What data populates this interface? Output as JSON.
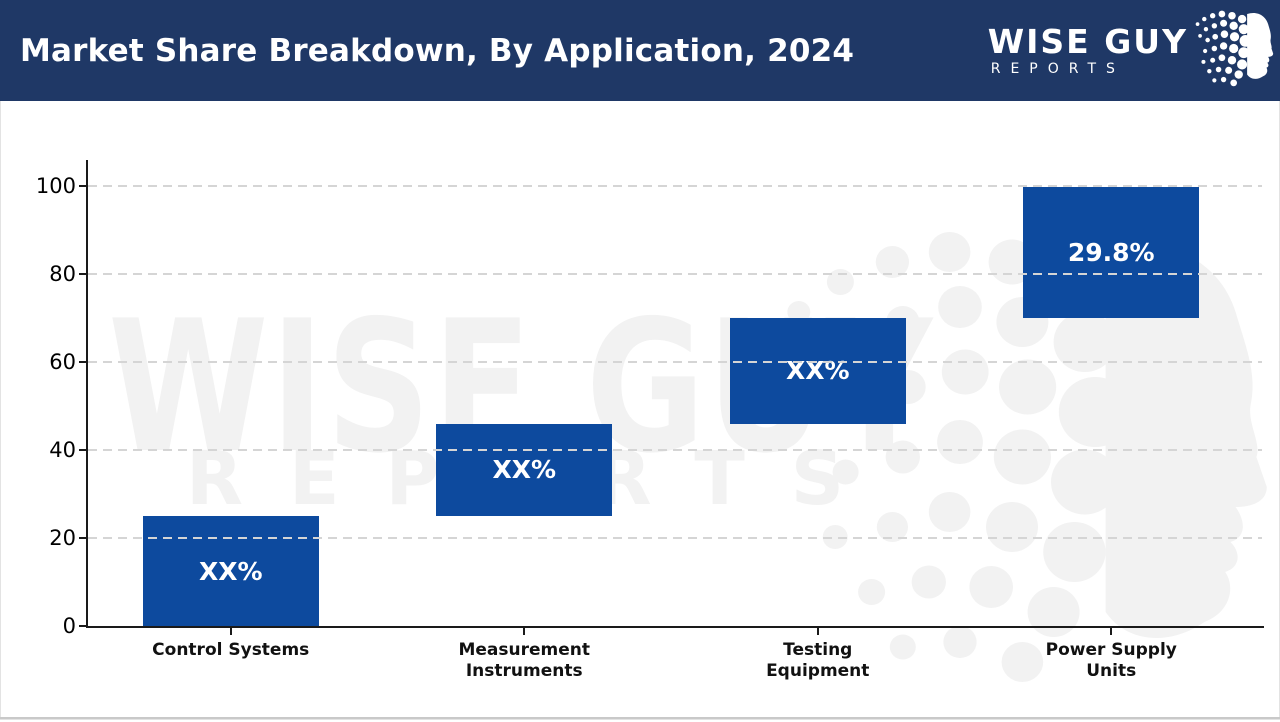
{
  "header": {
    "title": "Market Share Breakdown, By Application, 2024",
    "bg_color": "#1f3866",
    "logo": {
      "line1": "WISE GUY",
      "line2": "REPORTS"
    }
  },
  "watermark": {
    "line1": "WISE GUY",
    "line2": "REPORTS"
  },
  "chart_data": {
    "type": "bar",
    "subtype": "waterfall",
    "title": "Market Share Breakdown, By Application, 2024",
    "categories": [
      "Control Systems",
      "Measurement Instruments",
      "Testing Equipment",
      "Power Supply Units"
    ],
    "bars": [
      {
        "category": "Control Systems",
        "start": 0,
        "end": 25,
        "label": "XX%"
      },
      {
        "category": "Measurement Instruments",
        "start": 25,
        "end": 46,
        "label": "XX%"
      },
      {
        "category": "Testing Equipment",
        "start": 46,
        "end": 70,
        "label": "XX%"
      },
      {
        "category": "Power Supply Units",
        "start": 70,
        "end": 99.8,
        "label": "29.8%"
      }
    ],
    "xlabel": "",
    "ylabel": "",
    "ylim": [
      0,
      100
    ],
    "yticks": [
      0,
      20,
      40,
      60,
      80,
      100
    ],
    "grid": {
      "horizontal": true,
      "style": "dashed",
      "color": "#d5d5d5"
    },
    "legend": "none",
    "bar_color": "#0d4a9e",
    "bar_label_color": "#ffffff"
  }
}
